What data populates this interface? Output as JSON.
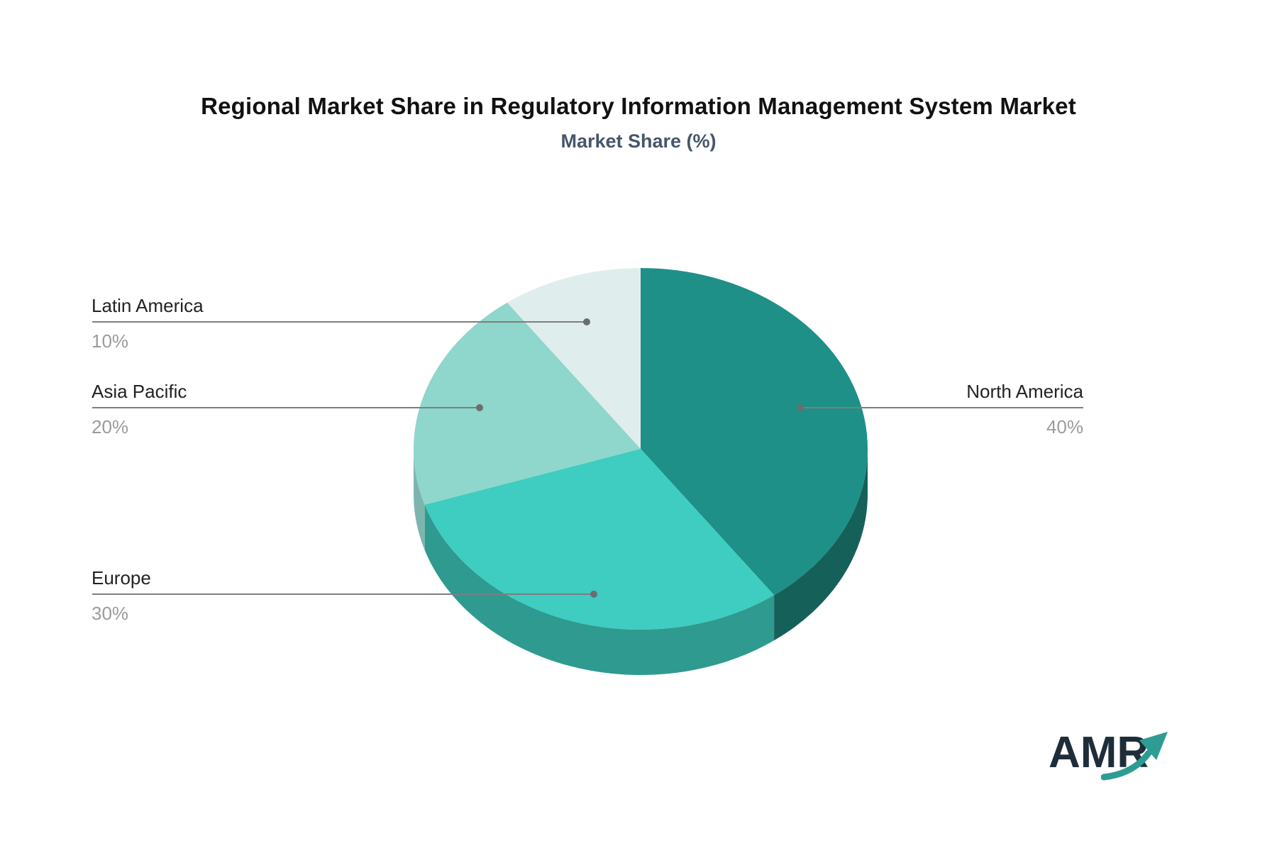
{
  "chart_data": {
    "type": "pie",
    "title": "Regional Market Share in Regulatory Information Management System Market",
    "subtitle": "Market Share (%)",
    "unit": "%",
    "start_angle_deg": -90,
    "direction": "clockwise",
    "style": "3d-depth",
    "legend_position": "none",
    "grid": false,
    "segments": [
      {
        "label": "North America",
        "value": 40,
        "display": "40%",
        "color": "#1e9088",
        "side_color": "#15615a"
      },
      {
        "label": "Europe",
        "value": 30,
        "display": "30%",
        "color": "#3ecdc0",
        "side_color": "#2f9a90"
      },
      {
        "label": "Asia Pacific",
        "value": 20,
        "display": "20%",
        "color": "#8fd6cd",
        "side_color": "#7db5ae"
      },
      {
        "label": "Latin America",
        "value": 10,
        "display": "10%",
        "color": "#dfeeec",
        "side_color": "#c3d9d6"
      }
    ]
  },
  "logo": {
    "text": "AMR",
    "text_color": "#1d2d3a",
    "arrow_color": "#2d9c93"
  },
  "colors": {
    "background": "#ffffff",
    "title_text": "#111111",
    "subtitle_text": "#46566b",
    "label_text": "#222222",
    "percent_text": "#9b9b9b",
    "leader_line": "#7e7e7e",
    "leader_dot": "#6d6d6d"
  }
}
